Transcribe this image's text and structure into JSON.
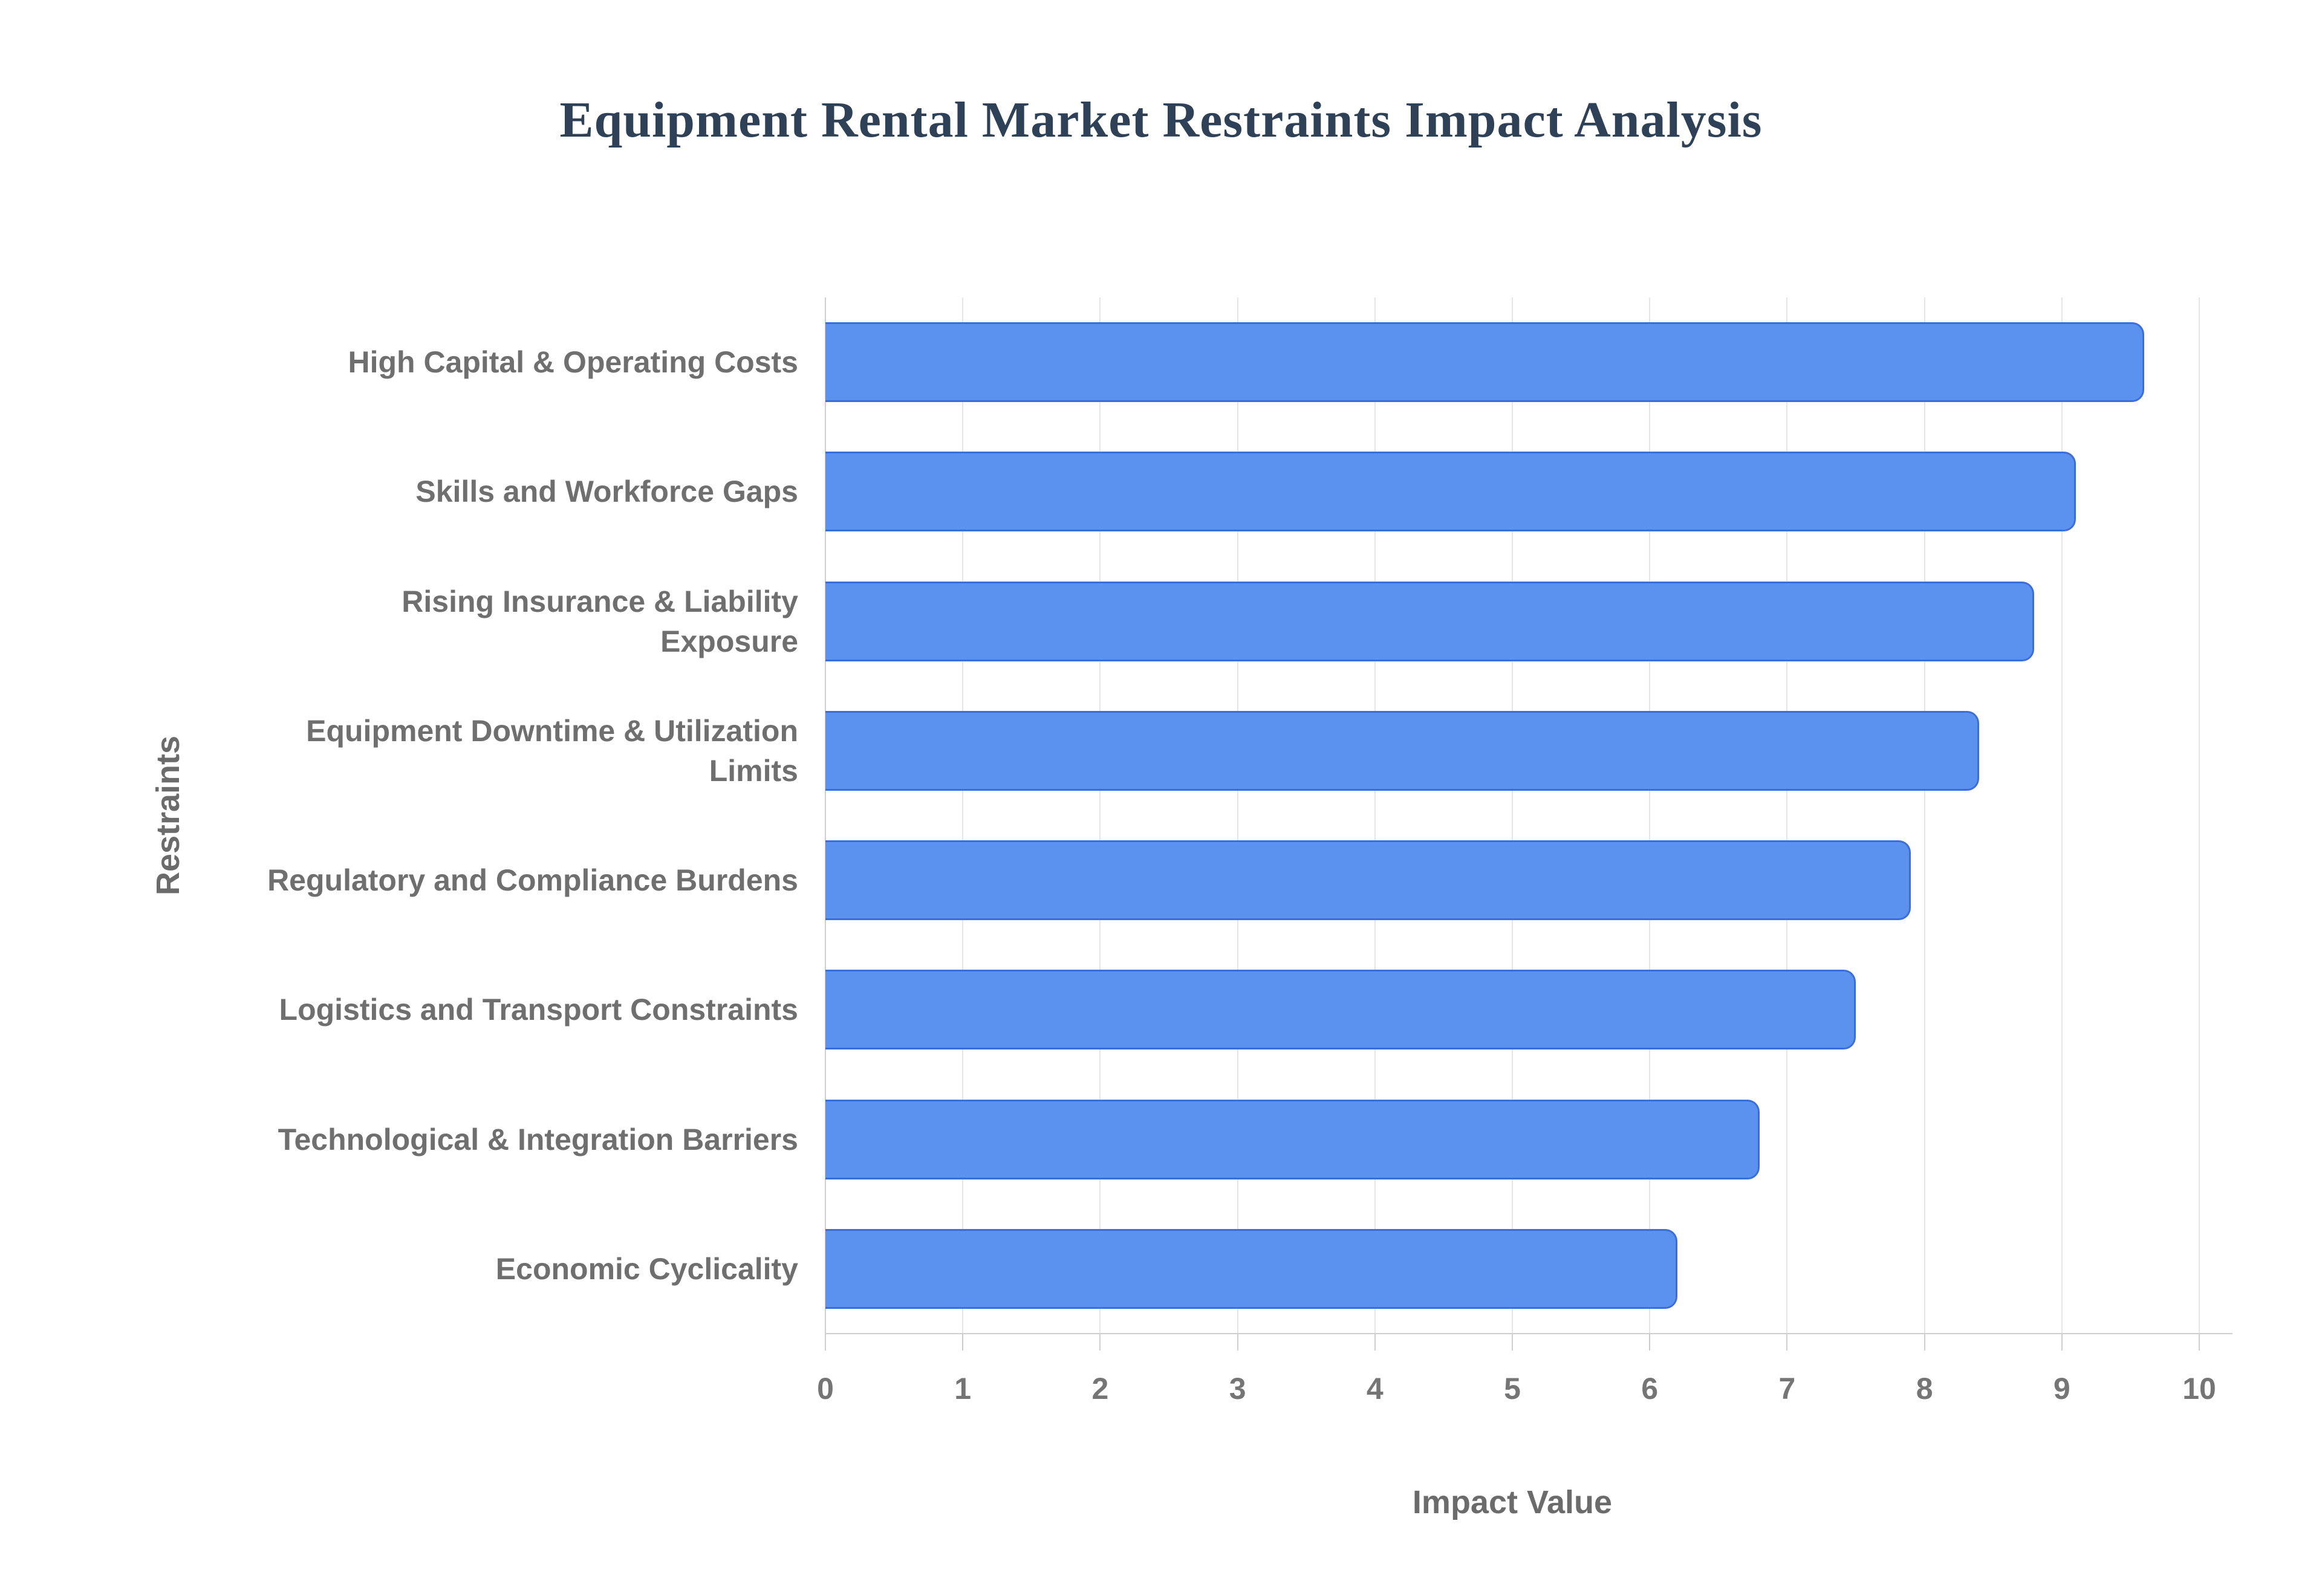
{
  "chart_data": {
    "type": "bar",
    "orientation": "horizontal",
    "title": "Equipment Rental Market Restraints Impact Analysis",
    "xlabel": "Impact Value",
    "ylabel": "Restraints",
    "categories": [
      "High Capital & Operating Costs",
      "Skills and Workforce Gaps",
      "Rising Insurance & Liability Exposure",
      "Equipment Downtime & Utilization Limits",
      "Regulatory and Compliance Burdens",
      "Logistics and Transport Constraints",
      "Technological & Integration Barriers",
      "Economic Cyclicality"
    ],
    "values": [
      9.6,
      9.1,
      8.8,
      8.4,
      7.9,
      7.5,
      6.8,
      6.2
    ],
    "xlim": [
      0,
      10
    ],
    "xticks": [
      0,
      1,
      2,
      3,
      4,
      5,
      6,
      7,
      8,
      9,
      10
    ],
    "grid": true,
    "legend": false,
    "bar_color": "#5b92f0",
    "bar_border_color": "#3a6edc",
    "title_color": "#2e4157",
    "axis_label_color": "#757575",
    "gridline_color": "#e4e6e9",
    "background_color": "#ffffff"
  }
}
